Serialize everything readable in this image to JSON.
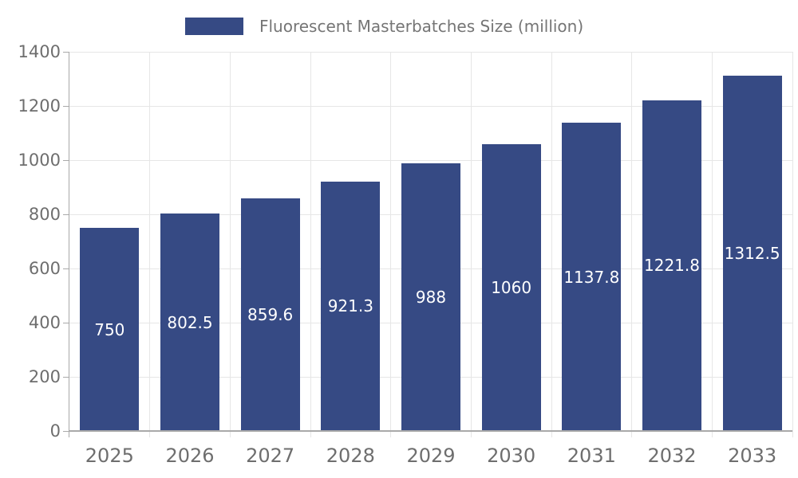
{
  "colors": {
    "bar": "#364A84",
    "grid": "#E6E6E6",
    "axis_line": "#A9A9A9",
    "tick": "#C9C9C9",
    "axis_label": "#6E6E6E",
    "legend_text": "#757575",
    "value_label": "#FFFFFF",
    "background": "#FFFFFF"
  },
  "chart_data": {
    "type": "bar",
    "title": "",
    "legend_label": "Fluorescent Masterbatches Size (million)",
    "legend_position": "top",
    "categories": [
      "2025",
      "2026",
      "2027",
      "2028",
      "2029",
      "2030",
      "2031",
      "2032",
      "2033"
    ],
    "values": [
      750,
      802.5,
      859.6,
      921.3,
      988,
      1060,
      1137.8,
      1221.8,
      1312.5
    ],
    "xlabel": "",
    "ylabel": "",
    "ylim": [
      0,
      1400
    ],
    "yticks": [
      0,
      200,
      400,
      600,
      800,
      1000,
      1200,
      1400
    ],
    "grid": true,
    "value_labels_shown": true
  }
}
